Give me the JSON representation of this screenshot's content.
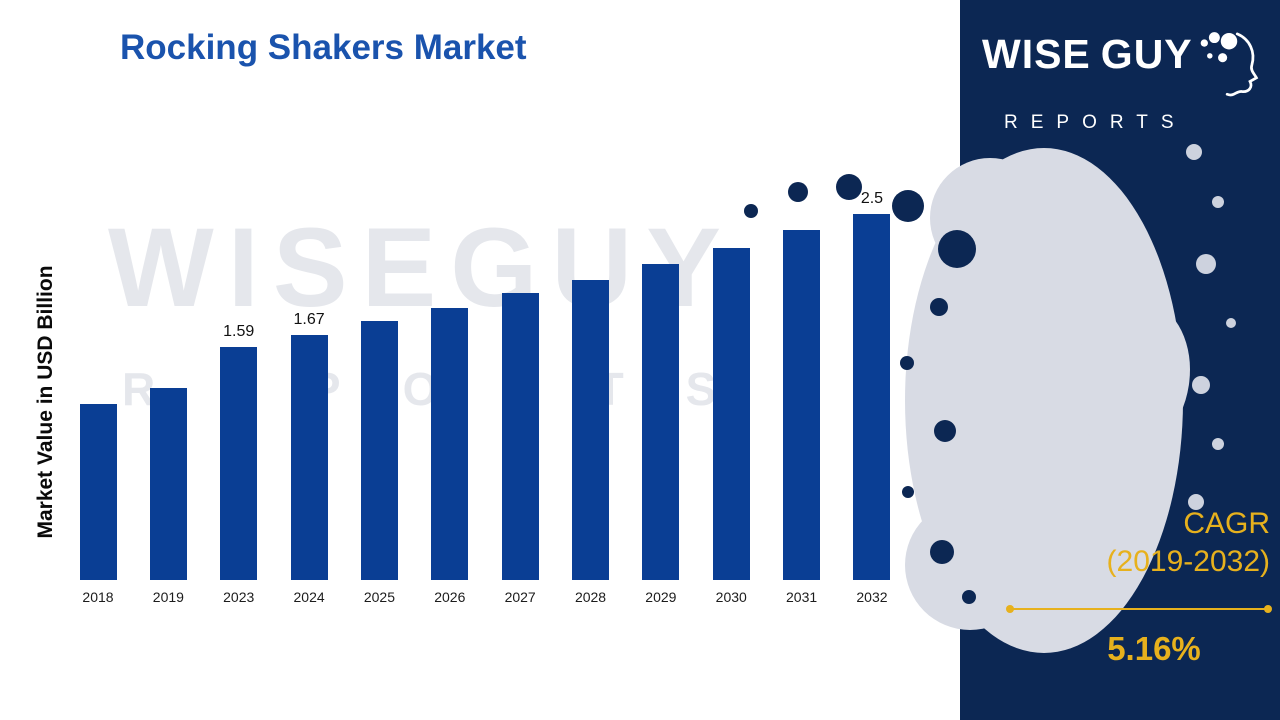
{
  "title": "Rocking Shakers Market",
  "logo": {
    "word1": "WISE",
    "word2": "GUY",
    "subtitle": "REPORTS"
  },
  "watermark": {
    "line1": "WISEGUY",
    "line2": "REPORTS"
  },
  "colors": {
    "bar_blue": "#0a3e94",
    "title_blue": "#1a53ad",
    "panel_navy": "#0c2753",
    "accent_gold": "#e7b11d",
    "silhouette_gray": "#d8dbe4"
  },
  "chart_data": {
    "type": "bar",
    "title": "Rocking Shakers Market",
    "xlabel": "",
    "ylabel": "Market Value in USD Billion",
    "ylim": [
      0,
      2.8
    ],
    "grid": false,
    "legend": "none",
    "categories": [
      "2018",
      "2019",
      "2023",
      "2024",
      "2025",
      "2026",
      "2027",
      "2028",
      "2029",
      "2030",
      "2031",
      "2032"
    ],
    "values": [
      1.2,
      1.31,
      1.59,
      1.67,
      1.77,
      1.86,
      1.96,
      2.05,
      2.16,
      2.27,
      2.39,
      2.5
    ],
    "data_labels": [
      "",
      "",
      "1.59",
      "1.67",
      "",
      "",
      "",
      "",
      "",
      "",
      "",
      "2.5"
    ],
    "unit": "USD Billion"
  },
  "cagr": {
    "label": "CAGR",
    "range": "(2019-2032)",
    "value": "5.16%"
  }
}
